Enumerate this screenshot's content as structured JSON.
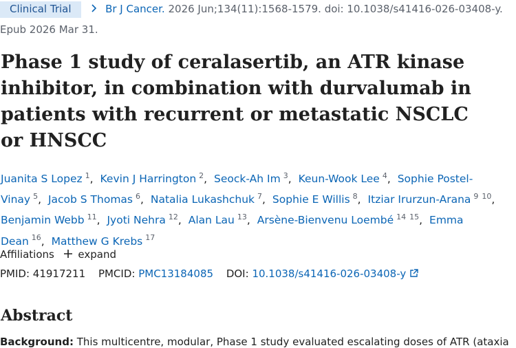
{
  "header": {
    "badge": "Clinical Trial",
    "journal": "Br J Cancer.",
    "citation": "2026 Jun;134(11):1568-1579. doi: 10.1038/s41416-026-03408-y.",
    "epub": "Epub 2026 Mar 31."
  },
  "title": "Phase 1 study of ceralasertib, an ATR kinase inhibitor, in combination with durvalumab in patients with recurrent or metastatic NSCLC or HNSCC",
  "authors": [
    {
      "name": "Juanita S Lopez",
      "affiliations": [
        "1"
      ]
    },
    {
      "name": "Kevin J Harrington",
      "affiliations": [
        "2"
      ]
    },
    {
      "name": "Seock-Ah Im",
      "affiliations": [
        "3"
      ]
    },
    {
      "name": "Keun-Wook Lee",
      "affiliations": [
        "4"
      ]
    },
    {
      "name": "Sophie Postel-Vinay",
      "affiliations": [
        "5"
      ]
    },
    {
      "name": "Jacob S Thomas",
      "affiliations": [
        "6"
      ]
    },
    {
      "name": "Natalia Lukashchuk",
      "affiliations": [
        "7"
      ]
    },
    {
      "name": "Sophie E Willis",
      "affiliations": [
        "8"
      ]
    },
    {
      "name": "Itziar Irurzun-Arana",
      "affiliations": [
        "9",
        "10"
      ]
    },
    {
      "name": "Benjamin Webb",
      "affiliations": [
        "11"
      ]
    },
    {
      "name": "Jyoti Nehra",
      "affiliations": [
        "12"
      ]
    },
    {
      "name": "Alan Lau",
      "affiliations": [
        "13"
      ]
    },
    {
      "name": "Arsène-Bienvenu Loembé",
      "affiliations": [
        "14",
        "15"
      ]
    },
    {
      "name": "Emma Dean",
      "affiliations": [
        "16"
      ]
    },
    {
      "name": "Matthew G Krebs",
      "affiliations": [
        "17"
      ]
    }
  ],
  "affiliations": {
    "label": "Affiliations",
    "toggle": "expand"
  },
  "identifiers": {
    "pmid_label": "PMID:",
    "pmid": "41917211",
    "pmcid_label": "PMCID:",
    "pmcid": "PMC13184085",
    "doi_label": "DOI:",
    "doi": "10.1038/s41416-026-03408-y"
  },
  "abstract": {
    "heading": "Abstract",
    "background_label": "Background:",
    "background_text": "This multicentre, modular, Phase 1 study evaluated escalating doses of ATR (ataxia"
  }
}
